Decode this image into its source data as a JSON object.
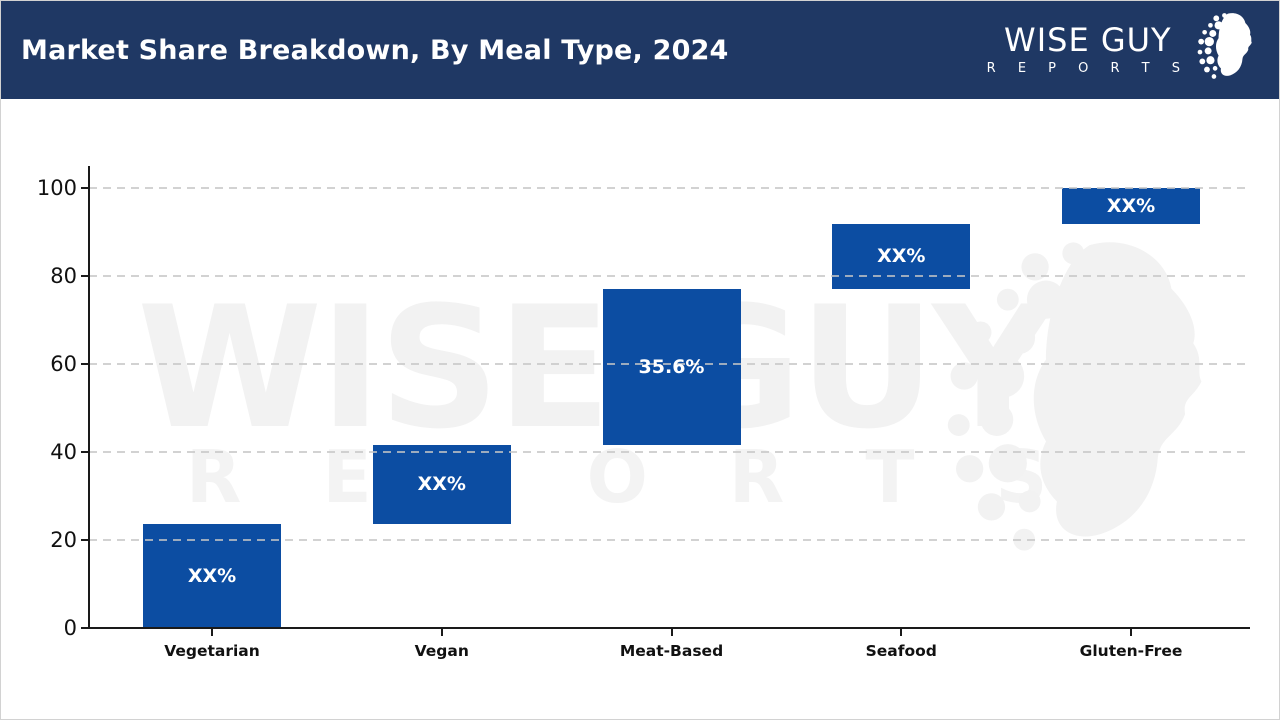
{
  "header": {
    "title": "Market Share Breakdown, By Meal Type, 2024",
    "background_color": "#1f3864",
    "logo": {
      "line1": "WISE GUY",
      "line2": "R E P O R T S"
    }
  },
  "watermark": {
    "line1": "WISE GUY",
    "line2": "R E P O R T S"
  },
  "chart_data": {
    "type": "bar",
    "subtype": "floating-waterfall",
    "title": "Market Share Breakdown, By Meal Type, 2024",
    "categories": [
      "Vegetarian",
      "Vegan",
      "Meat-Based",
      "Seafood",
      "Gluten-Free"
    ],
    "segments": [
      {
        "category": "Vegetarian",
        "start": 0,
        "end": 23.6,
        "value": 23.6,
        "label": "XX%"
      },
      {
        "category": "Vegan",
        "start": 23.6,
        "end": 41.5,
        "value": 17.9,
        "label": "XX%"
      },
      {
        "category": "Meat-Based",
        "start": 41.5,
        "end": 77.1,
        "value": 35.6,
        "label": "35.6%"
      },
      {
        "category": "Seafood",
        "start": 77.1,
        "end": 91.9,
        "value": 14.8,
        "label": "XX%"
      },
      {
        "category": "Gluten-Free",
        "start": 91.9,
        "end": 100,
        "value": 8.1,
        "label": "XX%"
      }
    ],
    "xlabel": "",
    "ylabel": "",
    "ylim": [
      0,
      100
    ],
    "y_ticks": [
      0,
      20,
      40,
      60,
      80,
      100
    ],
    "grid": "horizontal-dashed",
    "legend": "none",
    "bar_color": "#0c4da2",
    "bar_label_color": "#ffffff",
    "axis_color": "#1a1a1a"
  }
}
